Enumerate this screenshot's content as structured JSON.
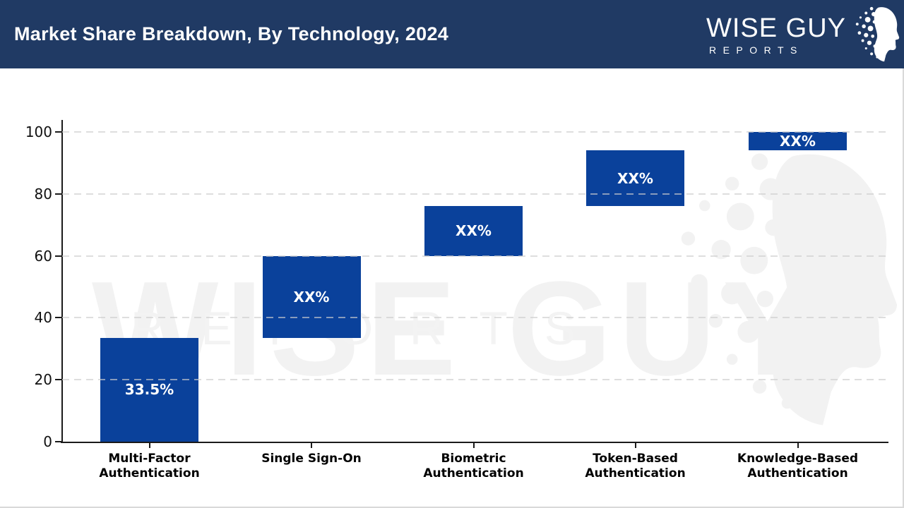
{
  "header": {
    "title": "Market Share Breakdown, By Technology, 2024",
    "logo": {
      "name": "WISE GUY",
      "sub": "REPORTS",
      "icon": "dotted-head-profile-icon"
    }
  },
  "watermark": {
    "line1": "WISE GUY",
    "line2": "REPORTS",
    "icon": "dotted-head-profile-icon"
  },
  "chart_data": {
    "type": "bar",
    "subtype": "floating_segment_bars",
    "title": "Market Share Breakdown, By Technology, 2024",
    "categories": [
      "Multi-Factor Authentication",
      "Single Sign-On",
      "Biometric Authentication",
      "Token-Based Authentication",
      "Knowledge-Based Authentication"
    ],
    "category_label_lines": [
      [
        "Multi-Factor",
        "Authentication"
      ],
      [
        "Single Sign-On"
      ],
      [
        "Biometric",
        "Authentication"
      ],
      [
        "Token-Based",
        "Authentication"
      ],
      [
        "Knowledge-Based",
        "Authentication"
      ]
    ],
    "bars": [
      {
        "category": "Multi-Factor Authentication",
        "start": 0,
        "end": 33.5,
        "label": "33.5%"
      },
      {
        "category": "Single Sign-On",
        "start": 33.5,
        "end": 60,
        "label": "XX%"
      },
      {
        "category": "Biometric Authentication",
        "start": 60,
        "end": 76,
        "label": "XX%"
      },
      {
        "category": "Token-Based Authentication",
        "start": 76,
        "end": 94,
        "label": "XX%"
      },
      {
        "category": "Knowledge-Based Authentication",
        "start": 94,
        "end": 100,
        "label": "XX%"
      }
    ],
    "xlabel": "",
    "ylabel": "",
    "ylim": [
      0,
      100
    ],
    "yticks": [
      0,
      20,
      40,
      60,
      80,
      100
    ],
    "grid": {
      "axis": "y",
      "style": "dashed",
      "color": "#dcdcdc"
    },
    "legend": null,
    "bar_color": "#0a419b",
    "bar_label_color": "#ffffff"
  },
  "colors": {
    "header_bg": "#203a64",
    "bar": "#0a419b",
    "axis": "#1a1a1a",
    "watermark": "#f2f2f2",
    "edge_rule": "#d9d9d9"
  }
}
